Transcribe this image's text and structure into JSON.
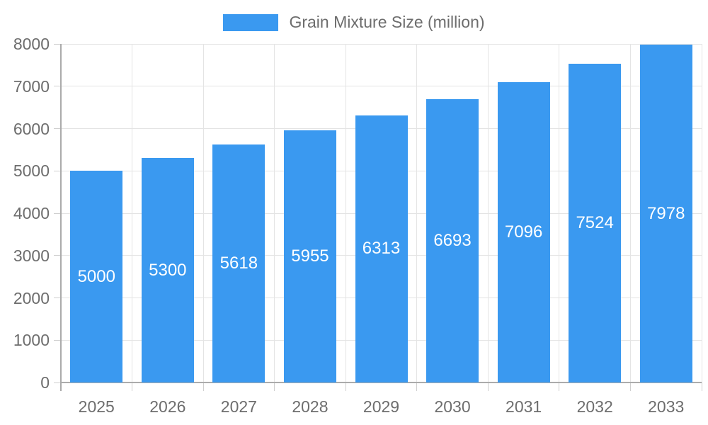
{
  "chart_data": {
    "type": "bar",
    "title": "Grain Mixture Size (million)",
    "legend_position": "top",
    "categories": [
      "2025",
      "2026",
      "2027",
      "2028",
      "2029",
      "2030",
      "2031",
      "2032",
      "2033"
    ],
    "values": [
      5000,
      5300,
      5618,
      5955,
      6313,
      6693,
      7096,
      7524,
      7978
    ],
    "series": [
      {
        "name": "Grain Mixture Size (million)",
        "values": [
          5000,
          5300,
          5618,
          5955,
          6313,
          6693,
          7096,
          7524,
          7978
        ]
      }
    ],
    "xlabel": "",
    "ylabel": "",
    "ylim": [
      0,
      8000
    ],
    "yticks": [
      0,
      1000,
      2000,
      3000,
      4000,
      5000,
      6000,
      7000,
      8000
    ],
    "grid": true,
    "bar_labels_inside": true,
    "colors": {
      "bar": "#3a99f0",
      "bar_label": "#ffffff",
      "axis_text": "#6d6d6d",
      "grid_line": "#e4e4e4",
      "tick_line": "#cfcfcf",
      "axis_line": "#ababab",
      "background": "#ffffff"
    }
  }
}
